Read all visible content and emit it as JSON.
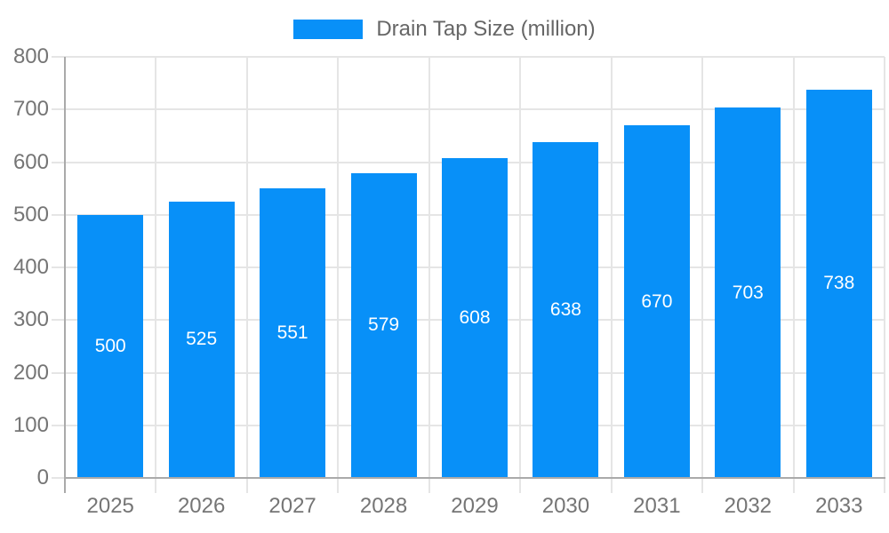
{
  "legend": {
    "label": "Drain Tap Size (million)"
  },
  "colors": {
    "bar": "#0890F8",
    "grid": "#E5E5E5",
    "axis": "#AAAAAA",
    "tick_text": "#757575",
    "legend_text": "#666666",
    "value_text": "#FFFFFF",
    "background": "#FFFFFF"
  },
  "chart_data": {
    "type": "bar",
    "title": "Drain Tap Size (million)",
    "categories": [
      "2025",
      "2026",
      "2027",
      "2028",
      "2029",
      "2030",
      "2031",
      "2032",
      "2033"
    ],
    "series": [
      {
        "name": "Drain Tap Size (million)",
        "values": [
          500,
          525,
          551,
          579,
          608,
          638,
          670,
          703,
          738
        ]
      }
    ],
    "xlabel": "",
    "ylabel": "",
    "ylim": [
      0,
      800
    ],
    "yticks": [
      0,
      100,
      200,
      300,
      400,
      500,
      600,
      700,
      800
    ],
    "grid": true,
    "legend_position": "top",
    "value_labels_inside_bars": true
  }
}
